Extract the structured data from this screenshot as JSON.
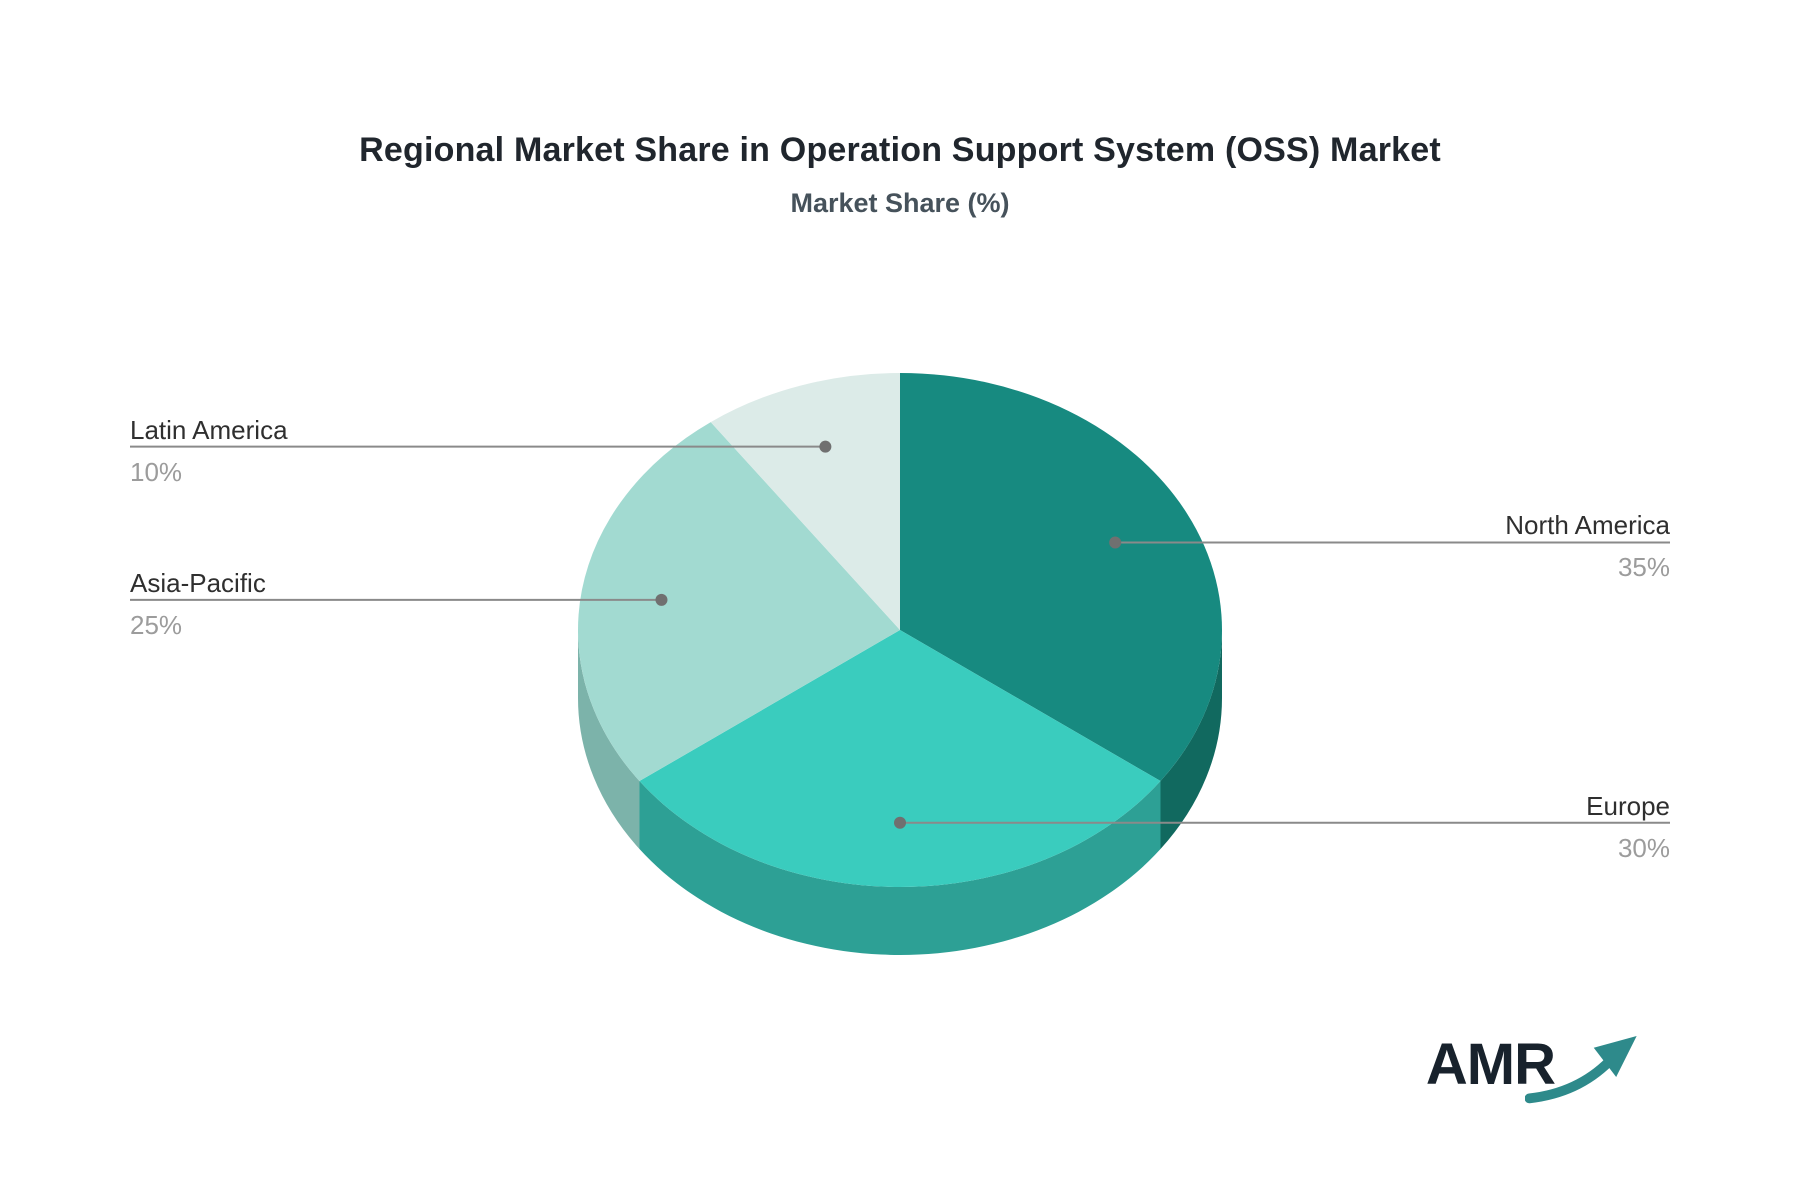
{
  "header": {
    "title": "Regional Market Share in Operation Support System (OSS) Market",
    "subtitle": "Market Share (%)"
  },
  "logo": {
    "text": "AMR",
    "text_color": "#18222c",
    "arrow_color": "#2e8a8b"
  },
  "chart_data": {
    "type": "pie",
    "style": "3d",
    "title": "Regional Market Share in Operation Support System (OSS) Market",
    "subtitle": "Market Share (%)",
    "unit": "%",
    "direction": "clockwise",
    "start_angle_deg": 0,
    "legend_position": "none",
    "labels_style": "leader-lines-with-percent",
    "connector_color": "#8a8a8a",
    "dot_color": "#707070",
    "label_name_color": "#2f2f2f",
    "label_pct_color": "#9c9c9c",
    "slices": [
      {
        "label": "North America",
        "value": 35,
        "pct_label": "35%",
        "color": "#178a80",
        "side_color": "#11695f"
      },
      {
        "label": "Europe",
        "value": 30,
        "pct_label": "30%",
        "color": "#3accbe",
        "side_color": "#2da095"
      },
      {
        "label": "Asia-Pacific",
        "value": 25,
        "pct_label": "25%",
        "color": "#a2dad1",
        "side_color": "#7cb3aa"
      },
      {
        "label": "Latin America",
        "value": 10,
        "pct_label": "10%",
        "color": "#dcebe8",
        "side_color": "#b7d2cd"
      }
    ]
  }
}
